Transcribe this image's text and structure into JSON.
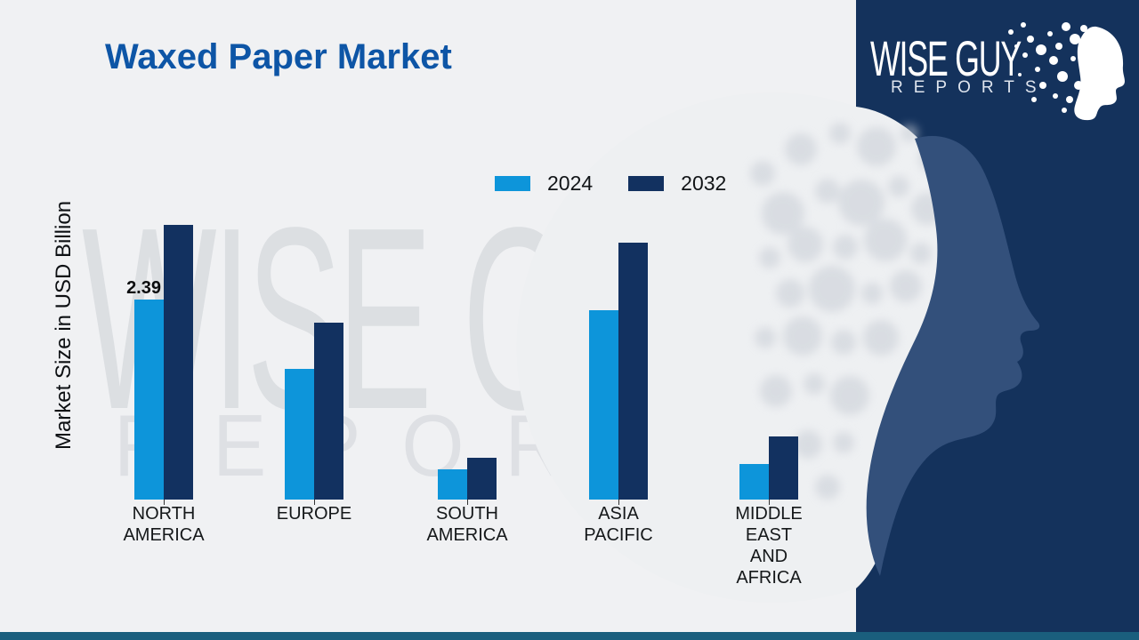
{
  "header": {
    "title": "Waxed Paper Market",
    "title_color": "#0d55a6"
  },
  "logo": {
    "brand_top": "WISE GUY",
    "brand_bottom": "REPORTS",
    "panel_color": "#14325c",
    "face_silhouette_color": "#33507b",
    "head_circle_color": "#eef0f2",
    "text_color": "#ffffff"
  },
  "watermark": {
    "line1": "WISE GUY",
    "line2": "REPORTS",
    "color": "#d8dbdf"
  },
  "footer": {
    "bar_color": "#1a5e7d"
  },
  "chart_data": {
    "type": "bar",
    "title": "Waxed Paper Market",
    "xlabel": "",
    "ylabel": "Market Size in USD Billion",
    "ylim": [
      0,
      3.5
    ],
    "grid": false,
    "legend_position": "top-center",
    "categories": [
      "NORTH AMERICA",
      "EUROPE",
      "SOUTH AMERICA",
      "ASIA PACIFIC",
      "MIDDLE EAST AND AFRICA"
    ],
    "category_label_lines": [
      [
        "NORTH",
        "AMERICA"
      ],
      [
        "EUROPE"
      ],
      [
        "SOUTH",
        "AMERICA"
      ],
      [
        "ASIA",
        "PACIFIC"
      ],
      [
        "MIDDLE",
        "EAST",
        "AND",
        "AFRICA"
      ]
    ],
    "series": [
      {
        "name": "2024",
        "color": "#0d95da",
        "values": [
          2.39,
          1.56,
          0.36,
          2.26,
          0.42
        ]
      },
      {
        "name": "2032",
        "color": "#123160",
        "values": [
          3.28,
          2.12,
          0.5,
          3.07,
          0.75
        ]
      }
    ],
    "annotation": {
      "text": "2.39",
      "category": "NORTH AMERICA",
      "series": "2024"
    }
  }
}
